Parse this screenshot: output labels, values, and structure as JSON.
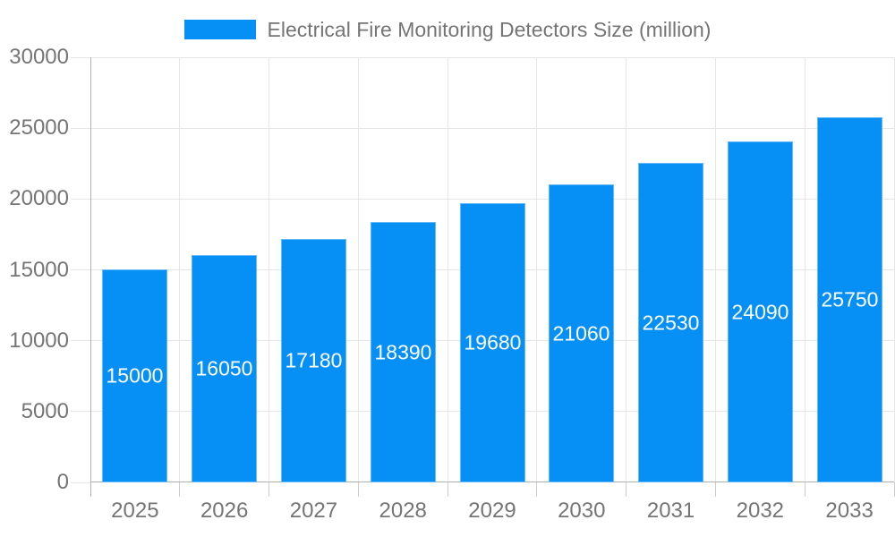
{
  "chart_data": {
    "type": "bar",
    "title": "Electrical Fire Monitoring Detectors Size (million)",
    "categories": [
      "2025",
      "2026",
      "2027",
      "2028",
      "2029",
      "2030",
      "2031",
      "2032",
      "2033"
    ],
    "values": [
      15000,
      16050,
      17180,
      18390,
      19680,
      21060,
      22530,
      24090,
      25750
    ],
    "value_labels": [
      "15000",
      "16050",
      "17180",
      "18390",
      "19680",
      "21060",
      "22530",
      "24090",
      "25750"
    ],
    "ytick_labels": [
      "0",
      "5000",
      "10000",
      "15000",
      "20000",
      "25000",
      "30000"
    ],
    "ylim": [
      0,
      30000
    ],
    "ytick_step": 5000,
    "xlabel": "",
    "ylabel": "",
    "grid": "on",
    "legend_position": "top-center",
    "colors": {
      "bar": "#0690f6",
      "bar_edge": "#64b9f7",
      "value_text": "#ffffff",
      "axis_text": "#757575",
      "grid_line": "#e6e6e6",
      "axis_line": "#b0b0b0",
      "tick_line": "#cccccc"
    }
  }
}
